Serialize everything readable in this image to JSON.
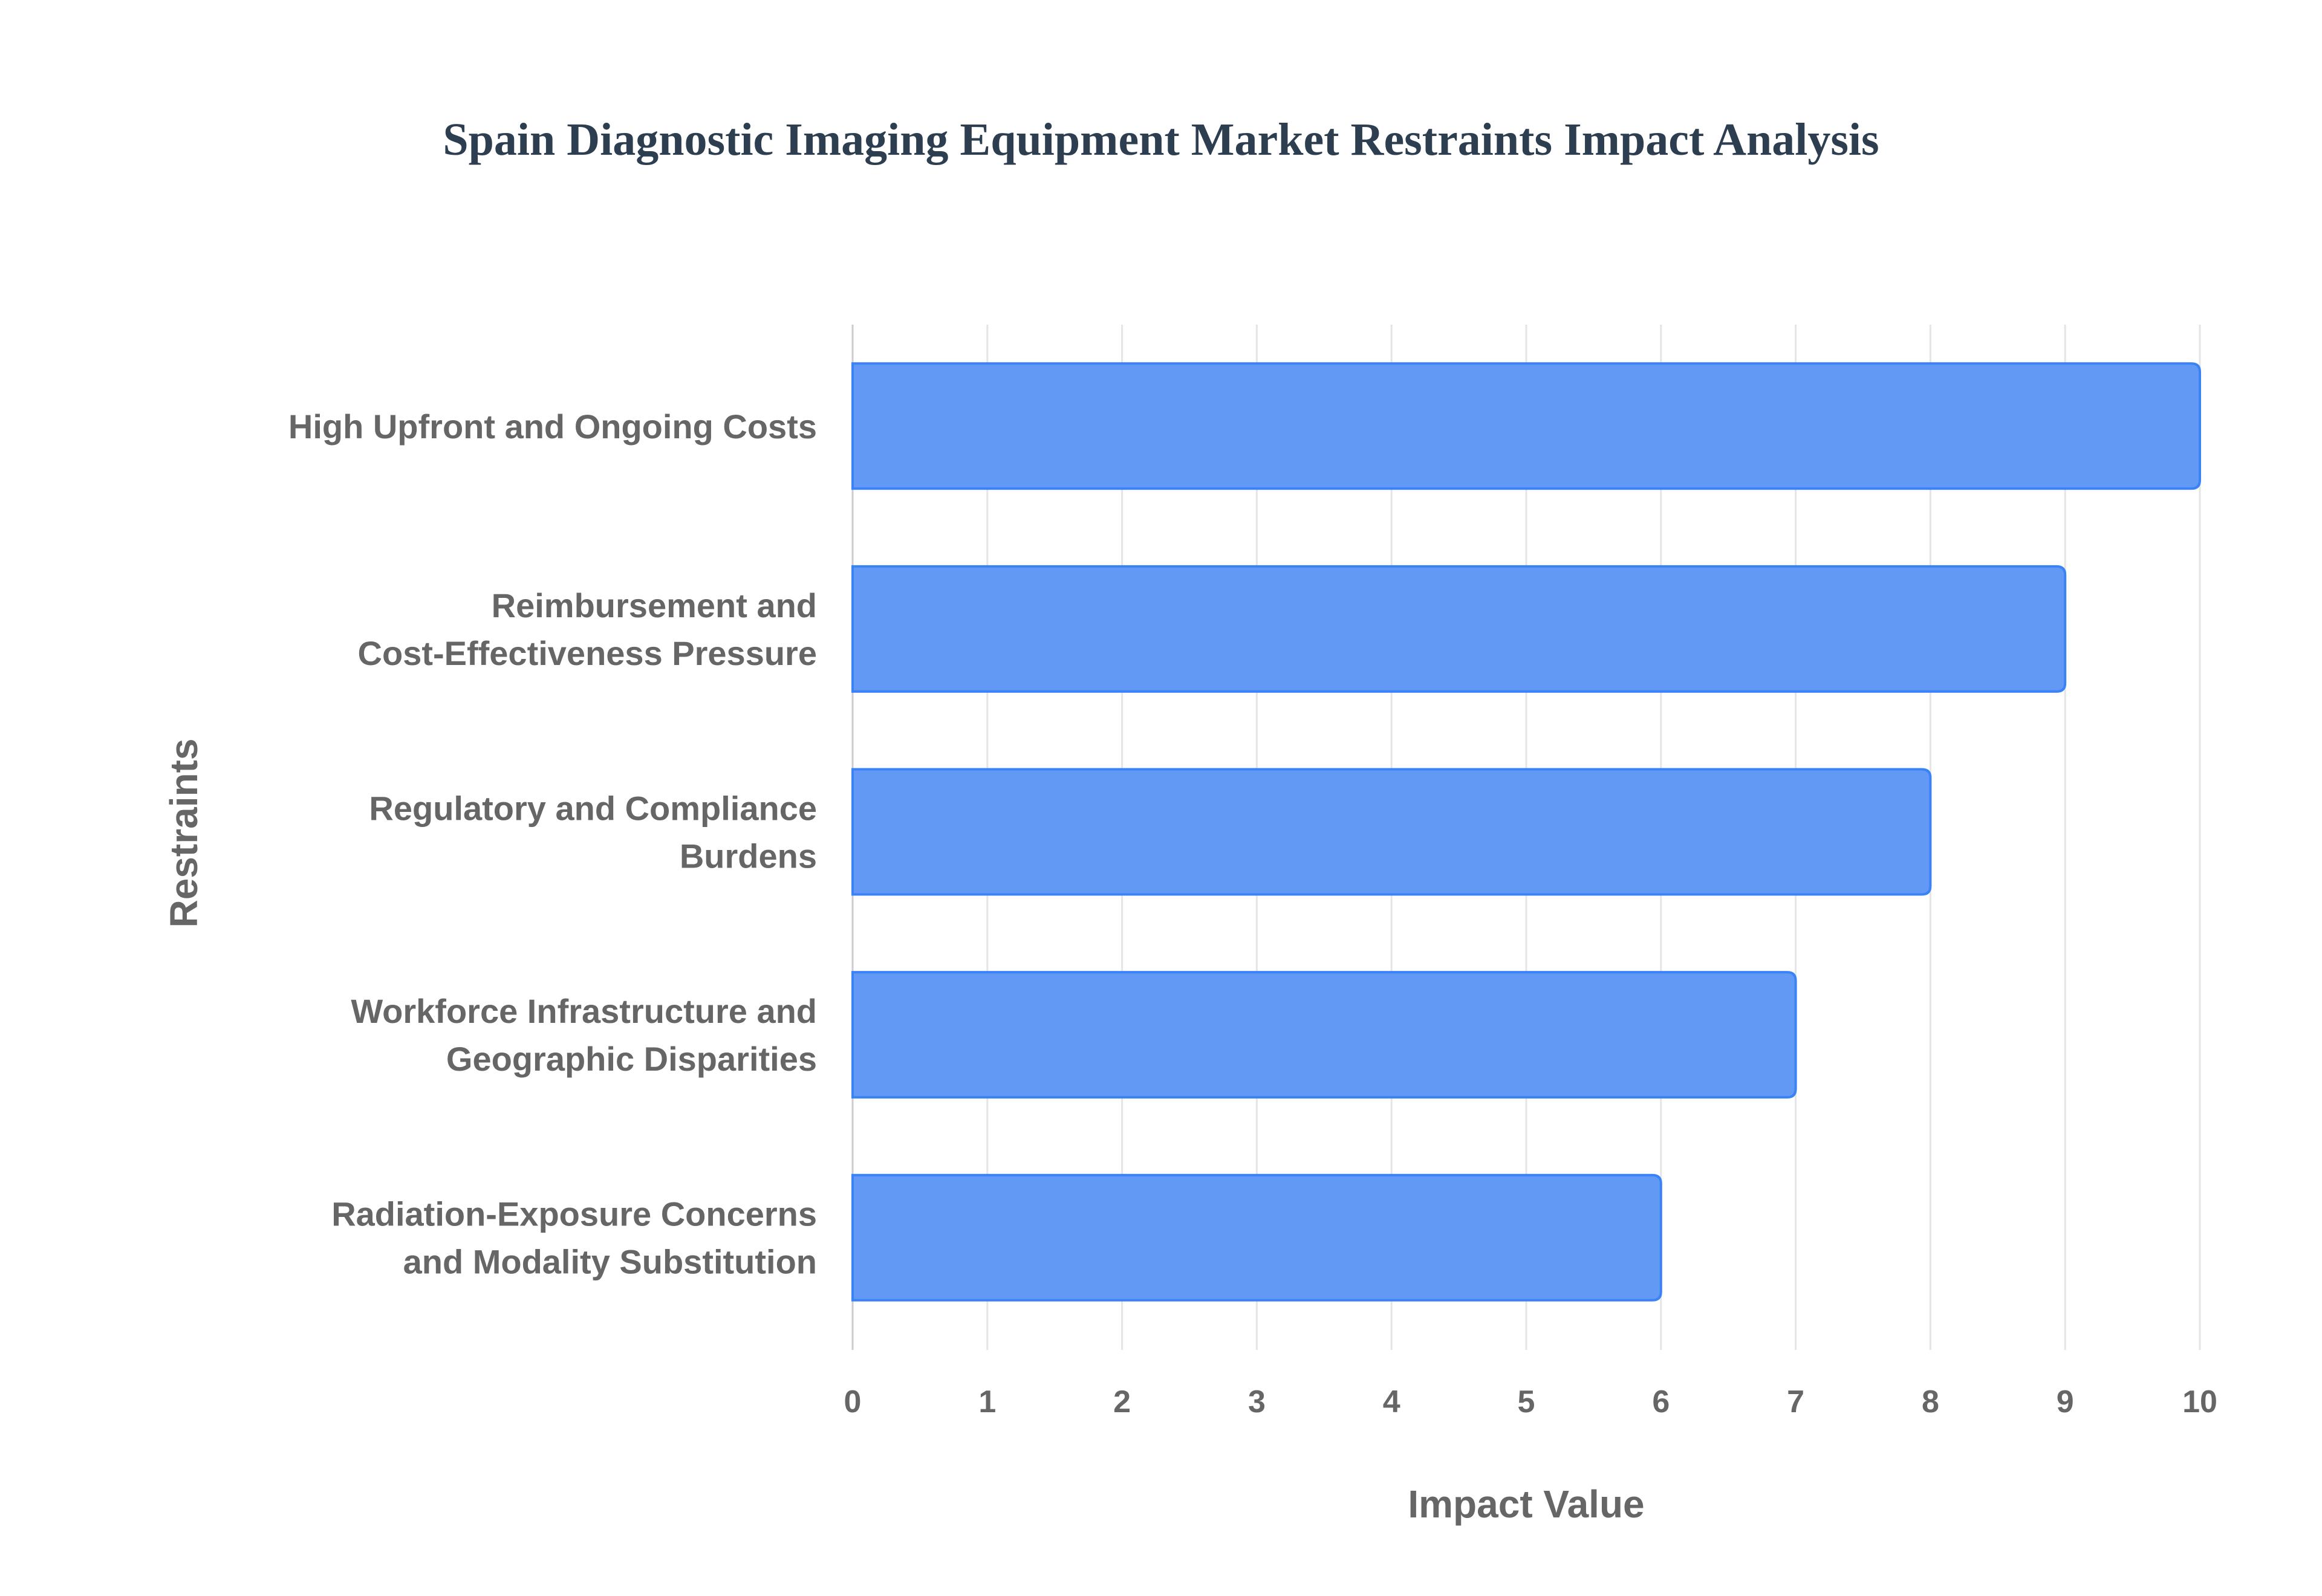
{
  "chart_data": {
    "type": "bar",
    "orientation": "horizontal",
    "title": "Spain Diagnostic Imaging Equipment Market Restraints Impact Analysis",
    "xlabel": "Impact Value",
    "ylabel": "Restraints",
    "categories": [
      [
        "High Upfront and Ongoing Costs"
      ],
      [
        "Reimbursement and",
        "Cost-Effectiveness Pressure"
      ],
      [
        "Regulatory and Compliance",
        "Burdens"
      ],
      [
        "Workforce Infrastructure and",
        "Geographic Disparities"
      ],
      [
        "Radiation-Exposure Concerns",
        "and Modality Substitution"
      ]
    ],
    "values": [
      10,
      9,
      8,
      7,
      6
    ],
    "xlim": [
      0,
      10
    ],
    "xticks": [
      "0",
      "1",
      "2",
      "3",
      "4",
      "5",
      "6",
      "7",
      "8",
      "9",
      "10"
    ],
    "grid": true,
    "legend": "none",
    "colors": {
      "bar_fill": "#6299f5",
      "bar_stroke": "#3b82f6",
      "grid": "#e5e5e5",
      "text": "#666666",
      "title": "#2c3e50"
    }
  }
}
